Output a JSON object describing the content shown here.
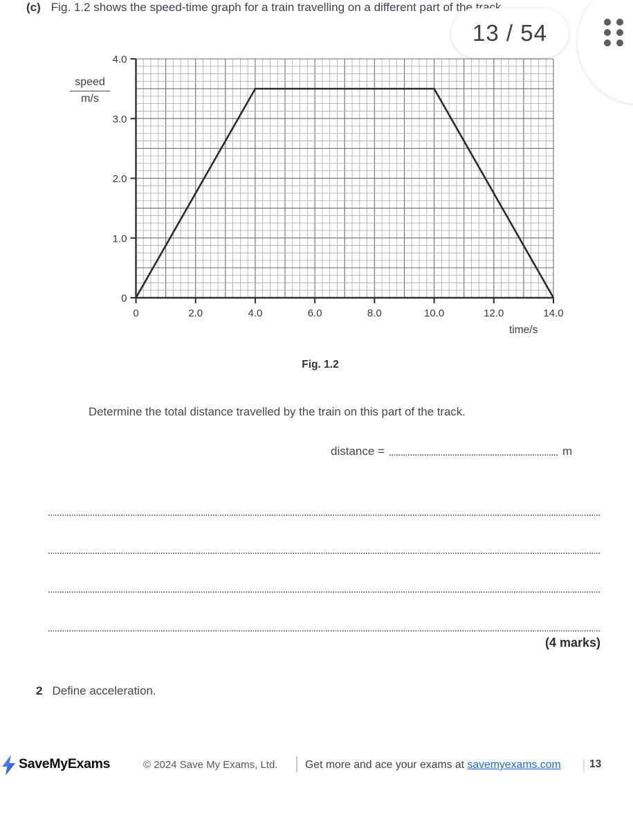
{
  "viewer": {
    "page_indicator": "13 / 54",
    "grid_button": "apps-grid-icon"
  },
  "question_c": {
    "label": "(c)",
    "text": "Fig. 1.2 shows the speed-time graph for a train travelling on a different part of the track."
  },
  "figure": {
    "caption": "Fig. 1.2"
  },
  "task": {
    "prompt": "Determine the total distance travelled by the train on this part of the track.",
    "answer_prefix": "distance =",
    "answer_unit": "m",
    "marks": "(4 marks)"
  },
  "question_2": {
    "number": "2",
    "text": "Define acceleration."
  },
  "footer": {
    "brand": "SaveMyExams",
    "copyright": "© 2024 Save My Exams, Ltd.",
    "promo_text": "Get more and ace your exams at ",
    "promo_link": "savemyexams.com",
    "page_number": "13"
  },
  "colors": {
    "link_blue": "#1a6ae4",
    "logo_blue_light": "#5f9bff",
    "logo_blue_dark": "#2246d1",
    "dots_gray": "#5a5e63",
    "grid_minor": "#a9a9a9",
    "grid_major": "#6d6d6d",
    "plot_line": "#2b2b2b"
  },
  "chart_data": {
    "type": "line",
    "title": "Fig. 1.2",
    "xlabel": "time/s",
    "ylabel_numerator": "speed",
    "ylabel_denominator": "m/s",
    "xtick_labels": [
      "0",
      "2.0",
      "4.0",
      "6.0",
      "8.0",
      "10.0",
      "12.0",
      "14.0"
    ],
    "ytick_labels": [
      "0",
      "1.0",
      "2.0",
      "3.0",
      "4.0"
    ],
    "xlim": [
      0,
      14
    ],
    "ylim": [
      0,
      4
    ],
    "points": [
      [
        0,
        0
      ],
      [
        4.0,
        3.5
      ],
      [
        10.0,
        3.5
      ],
      [
        14.0,
        0
      ]
    ],
    "grid": {
      "visible": true,
      "style": "fine square grid, darker line every 4th",
      "minor_x_step_s": 0.25,
      "major_x_step_s": 1.0
    },
    "legend": "none",
    "series_name": "train speed"
  }
}
